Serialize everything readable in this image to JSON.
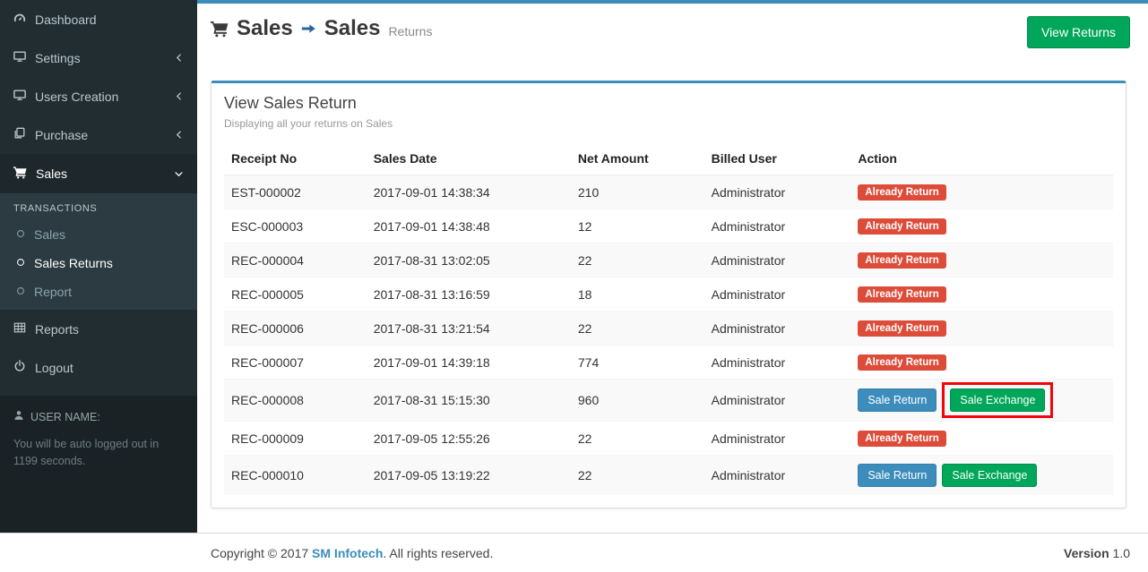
{
  "colors": {
    "accent_blue": "#3c8dbc",
    "success_green": "#00a65a",
    "danger_red": "#dd4b39",
    "annotation_red": "#f40408",
    "sidebar_bg": "#222d32"
  },
  "sidebar": {
    "dashboard": "Dashboard",
    "settings": "Settings",
    "users_creation": "Users Creation",
    "purchase": "Purchase",
    "sales": "Sales",
    "section_transactions": "TRANSACTIONS",
    "sub_sales": "Sales",
    "sub_sales_returns": "Sales Returns",
    "sub_report": "Report",
    "reports": "Reports",
    "logout": "Logout",
    "user_name_label": "USER NAME:",
    "auto_logout_notice": "You will be auto logged out in 1199 seconds."
  },
  "header": {
    "title_main": "Sales",
    "title_sub": "Sales",
    "title_small": "Returns",
    "view_returns_button": "View Returns"
  },
  "panel": {
    "title": "View Sales Return",
    "subtitle": "Displaying all your returns on Sales"
  },
  "table": {
    "headers": [
      "Receipt No",
      "Sales Date",
      "Net Amount",
      "Billed User",
      "Action"
    ],
    "rows": [
      {
        "receipt_no": "EST-000002",
        "sales_date": "2017-09-01 14:38:34",
        "net_amount": "210",
        "billed_user": "Administrator",
        "actions": [
          {
            "label": "Already Return",
            "type": "danger"
          }
        ]
      },
      {
        "receipt_no": "ESC-000003",
        "sales_date": "2017-09-01 14:38:48",
        "net_amount": "12",
        "billed_user": "Administrator",
        "actions": [
          {
            "label": "Already Return",
            "type": "danger"
          }
        ]
      },
      {
        "receipt_no": "REC-000004",
        "sales_date": "2017-08-31 13:02:05",
        "net_amount": "22",
        "billed_user": "Administrator",
        "actions": [
          {
            "label": "Already Return",
            "type": "danger"
          }
        ]
      },
      {
        "receipt_no": "REC-000005",
        "sales_date": "2017-08-31 13:16:59",
        "net_amount": "18",
        "billed_user": "Administrator",
        "actions": [
          {
            "label": "Already Return",
            "type": "danger"
          }
        ]
      },
      {
        "receipt_no": "REC-000006",
        "sales_date": "2017-08-31 13:21:54",
        "net_amount": "22",
        "billed_user": "Administrator",
        "actions": [
          {
            "label": "Already Return",
            "type": "danger"
          }
        ]
      },
      {
        "receipt_no": "REC-000007",
        "sales_date": "2017-09-01 14:39:18",
        "net_amount": "774",
        "billed_user": "Administrator",
        "actions": [
          {
            "label": "Already Return",
            "type": "danger"
          }
        ]
      },
      {
        "receipt_no": "REC-000008",
        "sales_date": "2017-08-31 15:15:30",
        "net_amount": "960",
        "billed_user": "Administrator",
        "actions": [
          {
            "label": "Sale Return",
            "type": "primary"
          },
          {
            "label": "Sale Exchange",
            "type": "success",
            "highlighted": true
          }
        ]
      },
      {
        "receipt_no": "REC-000009",
        "sales_date": "2017-09-05 12:55:26",
        "net_amount": "22",
        "billed_user": "Administrator",
        "actions": [
          {
            "label": "Already Return",
            "type": "danger"
          }
        ]
      },
      {
        "receipt_no": "REC-000010",
        "sales_date": "2017-09-05 13:19:22",
        "net_amount": "22",
        "billed_user": "Administrator",
        "actions": [
          {
            "label": "Sale Return",
            "type": "primary"
          },
          {
            "label": "Sale Exchange",
            "type": "success"
          }
        ]
      }
    ]
  },
  "footer": {
    "copyright_prefix": "Copyright © 2017 ",
    "company": "SM Infotech",
    "copyright_suffix": ". All rights reserved.",
    "version_label": "Version",
    "version_value": "1.0"
  }
}
